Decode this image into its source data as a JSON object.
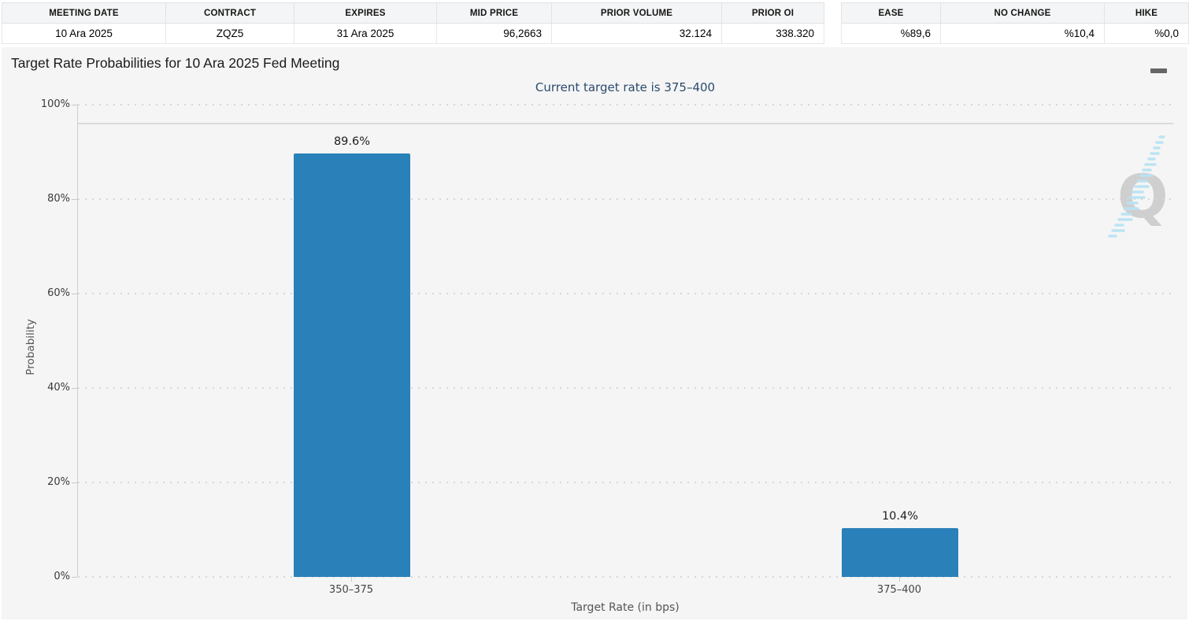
{
  "tables": {
    "contract_table": {
      "headers": [
        "MEETING DATE",
        "CONTRACT",
        "EXPIRES",
        "MID PRICE",
        "PRIOR VOLUME",
        "PRIOR OI"
      ],
      "row": [
        "10 Ara 2025",
        "ZQZ5",
        "31 Ara 2025",
        "96,2663",
        "32.124",
        "338.320"
      ]
    },
    "probability_table": {
      "headers": [
        "EASE",
        "NO CHANGE",
        "HIKE"
      ],
      "row": [
        "%89,6",
        "%10,4",
        "%0,0"
      ]
    }
  },
  "chart": {
    "title": "Target Rate Probabilities for 10 Ara 2025 Fed Meeting",
    "subtitle": "Current target rate is 375–400",
    "menu_icon": "hamburger-icon",
    "watermark_letter": "Q"
  },
  "chart_data": {
    "type": "bar",
    "title": "Target Rate Probabilities for 10 Ara 2025 Fed Meeting",
    "subtitle": "Current target rate is 375–400",
    "categories": [
      "350–375",
      "375–400"
    ],
    "values": [
      89.6,
      10.4
    ],
    "value_labels": [
      "89.6%",
      "10.4%"
    ],
    "xlabel": "Target Rate (in bps)",
    "ylabel": "Probability",
    "ylim": [
      0,
      100
    ],
    "yticks": [
      0,
      20,
      40,
      60,
      80,
      100
    ],
    "ytick_labels": [
      "0%",
      "20%",
      "40%",
      "60%",
      "80%",
      "100%"
    ],
    "plot_line_y": 96,
    "grid": "horizontal-dotted",
    "legend": "none",
    "bar_color": "#2a80b9"
  },
  "colors": {
    "bar": "#2a80b9",
    "panel_bg": "#f5f5f5",
    "subtitle": "#2b4a6e",
    "grid": "#d7d7d7",
    "watermark_gray": "#c9c9c9",
    "watermark_blue": "#b9e3f4"
  }
}
